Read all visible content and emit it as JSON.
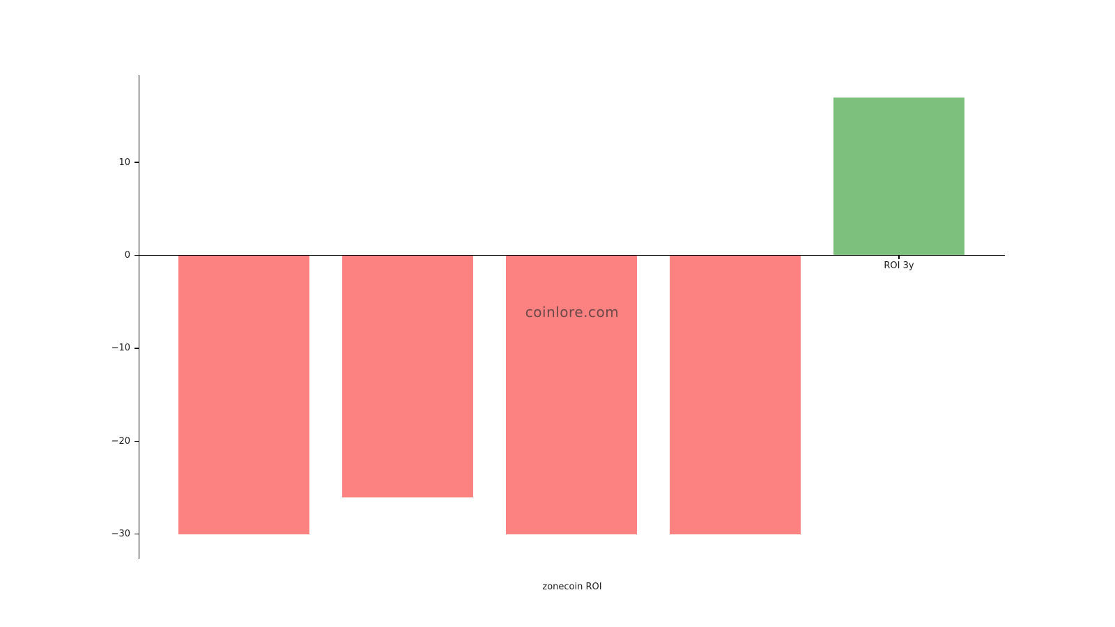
{
  "chart_data": {
    "type": "bar",
    "title": "",
    "xlabel": "zonecoin ROI",
    "ylabel": "",
    "categories": [
      "",
      "",
      "",
      "",
      "ROI 3y"
    ],
    "values": [
      -30,
      -26,
      -30,
      -30,
      17
    ],
    "series": [
      {
        "name": "ROI",
        "values": [
          -30,
          -26,
          -30,
          -30,
          17
        ]
      }
    ],
    "bar_colors": [
      "#fc8181",
      "#fc8181",
      "#fc8181",
      "#fc8181",
      "#7dbf7d"
    ],
    "negative_color": "#fc8181",
    "positive_color": "#7dbf7d",
    "yticks": [
      {
        "label": "10",
        "value": 10
      },
      {
        "label": "0",
        "value": 0
      },
      {
        "label": "−10",
        "value": -10
      },
      {
        "label": "−20",
        "value": -20
      },
      {
        "label": "−30",
        "value": -30
      }
    ],
    "xtick": {
      "label": "ROI 3y",
      "bar_index": 4
    },
    "ylim": [
      -32.6,
      19.4
    ],
    "grid": false,
    "legend": null,
    "axis_color": "#000000",
    "text_color": "#1a1a1a",
    "watermark": "coinlore.com"
  }
}
